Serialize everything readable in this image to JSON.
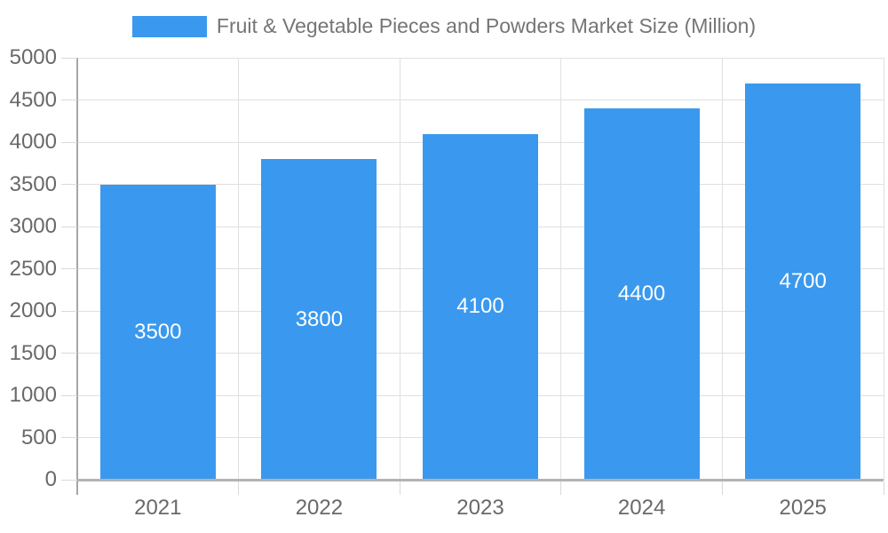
{
  "chart_data": {
    "type": "bar",
    "title": "Fruit & Vegetable Pieces and Powders Market Size (Million)",
    "categories": [
      "2021",
      "2022",
      "2023",
      "2024",
      "2025"
    ],
    "values": [
      3500,
      3800,
      4100,
      4400,
      4700
    ],
    "xlabel": "",
    "ylabel": "",
    "ylim": [
      0,
      5000
    ],
    "ytick_step": 500,
    "ytick_labels": [
      "0",
      "500",
      "1000",
      "1500",
      "2000",
      "2500",
      "3000",
      "3500",
      "4000",
      "4500",
      "5000"
    ],
    "grid": true,
    "legend_position": "top",
    "colors": {
      "bar": "#3a99ee",
      "bar_label": "#ffffff",
      "axis_text": "#696969",
      "legend_text": "#757575",
      "gridline": "#e0e0e0",
      "axis_line": "#aaaaaa",
      "background": "#ffffff"
    }
  }
}
